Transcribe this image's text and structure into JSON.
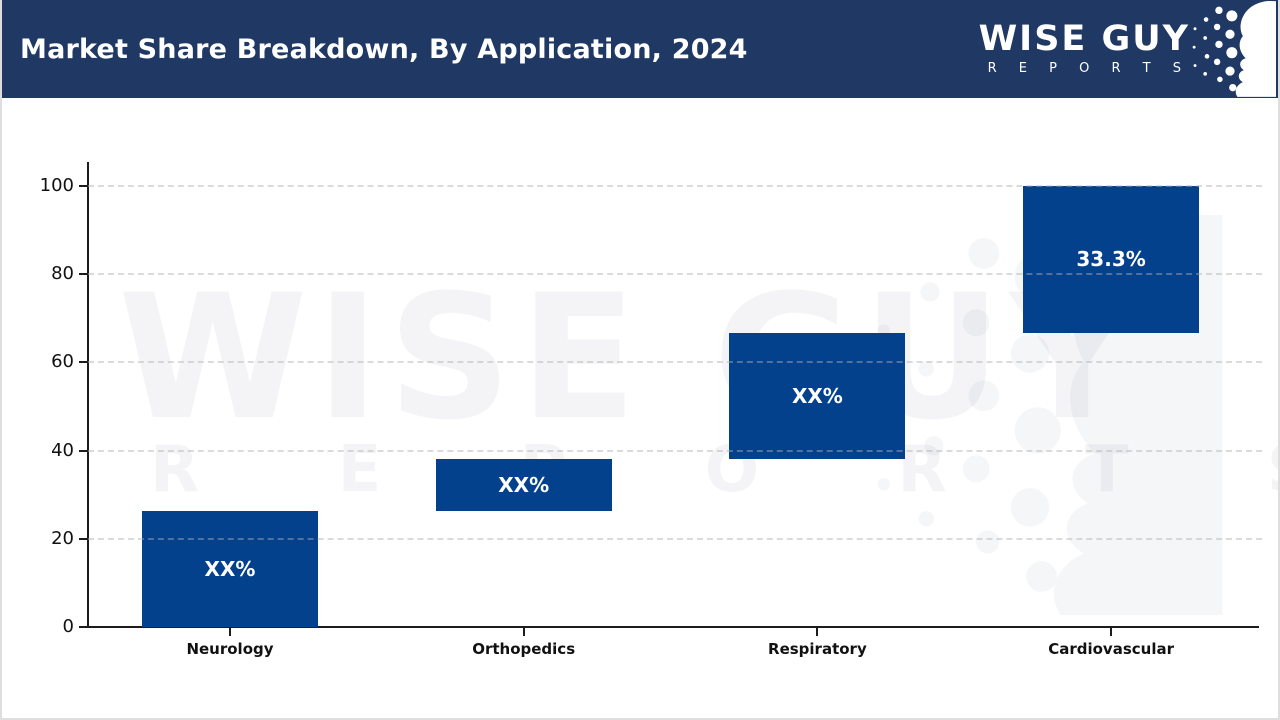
{
  "header": {
    "title": "Market Share Breakdown, By Application, 2024",
    "logo_line1": "WISE GUY",
    "logo_line2": "REPORTS"
  },
  "watermark": {
    "line1": "WISE GUY",
    "line2": "REPORTS"
  },
  "chart_data": {
    "type": "bar",
    "subtype": "waterfall-floating-segments",
    "title": "Market Share Breakdown, By Application, 2024",
    "categories": [
      "Neurology",
      "Orthopedics",
      "Respiratory",
      "Cardiovascular"
    ],
    "segments": [
      {
        "category": "Neurology",
        "start": 0,
        "end": 26.4,
        "label": "XX%"
      },
      {
        "category": "Orthopedics",
        "start": 26.4,
        "end": 38.0,
        "label": "XX%"
      },
      {
        "category": "Respiratory",
        "start": 38.0,
        "end": 66.7,
        "label": "XX%"
      },
      {
        "category": "Cardiovascular",
        "start": 66.7,
        "end": 100,
        "label": "33.3%"
      }
    ],
    "xlabel": "",
    "ylabel": "",
    "y_ticks": [
      0,
      20,
      40,
      60,
      80,
      100
    ],
    "ylim": [
      0,
      105
    ],
    "grid": "horizontal-dashed",
    "legend_position": "none",
    "bar_color": "#04418c",
    "bar_label_color": "#ffffff"
  },
  "colors": {
    "header_bg": "#1f3864",
    "bar": "#04418c",
    "axis": "#1c1c1c",
    "grid": "#e0e0e0",
    "text": "#111111",
    "page_bg": "#ffffff"
  }
}
